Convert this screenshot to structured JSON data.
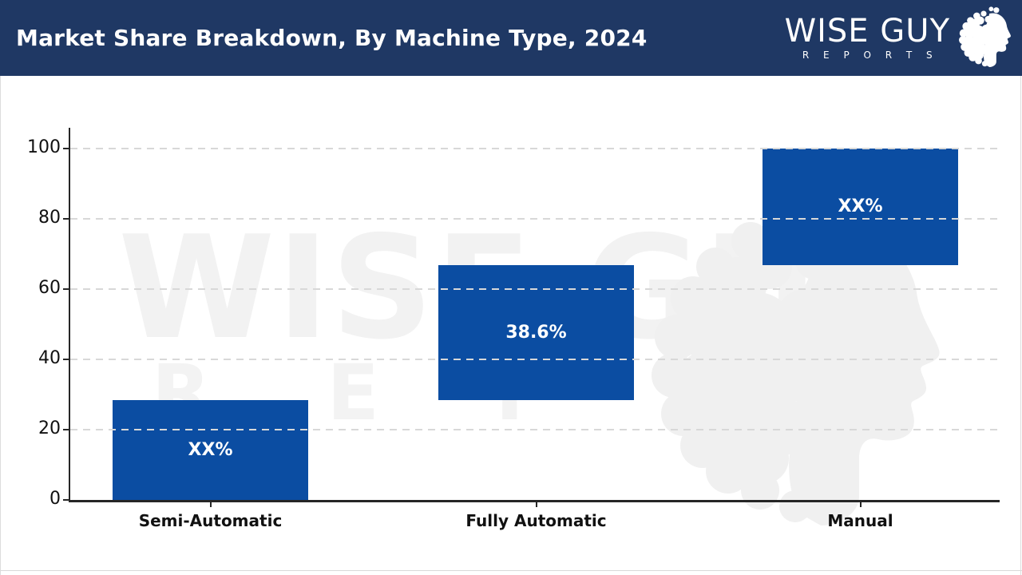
{
  "header": {
    "title": "Market Share Breakdown, By Machine Type, 2024",
    "bg_color": "#1f3864",
    "logo": {
      "line1": "WISE GUY",
      "line2": "R E P O R T S",
      "mark": "dotted-head-profile"
    }
  },
  "watermark": {
    "line1": "WISE GUY",
    "line2": "R E P O R T S",
    "mark": "dotted-head-profile",
    "color": "#f2f2f2"
  },
  "chart_data": {
    "type": "bar",
    "subtype": "floating_waterfall_segments",
    "title": "Market Share Breakdown, By Machine Type, 2024",
    "categories": [
      "Semi-Automatic",
      "Fully Automatic",
      "Manual"
    ],
    "bars": [
      {
        "category": "Semi-Automatic",
        "start": 0,
        "end": 28.3,
        "label": "XX%"
      },
      {
        "category": "Fully Automatic",
        "start": 28.3,
        "end": 66.9,
        "label": "38.6%"
      },
      {
        "category": "Manual",
        "start": 66.9,
        "end": 100,
        "label": "XX%"
      }
    ],
    "xlabel": "",
    "ylabel": "",
    "yticks": [
      0,
      20,
      40,
      60,
      80,
      100
    ],
    "ylim": [
      0,
      106
    ],
    "unit": "percent",
    "grid": "horizontal dashed, drawn above bars",
    "legend": "none",
    "bar_color": "#0b4da2",
    "bar_label_color": "#ffffff",
    "gridline_color": "#d8d8d8",
    "axis_color": "#262626"
  }
}
